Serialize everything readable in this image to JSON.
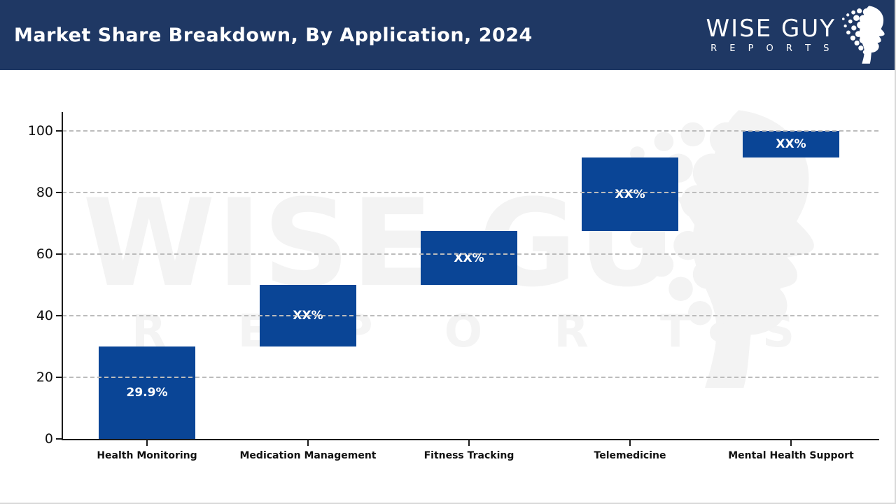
{
  "header": {
    "title": "Market Share Breakdown, By Application, 2024",
    "logo": {
      "name": "WISE GUY",
      "sub": "R E P O R T S"
    }
  },
  "watermark": {
    "line1": "WISE GUY",
    "line2": "R E P O R T S"
  },
  "colors": {
    "header_bg": "#1f3864",
    "bar": "#0a4596",
    "grid": "#bcbcbc",
    "axis": "#1a1a1a",
    "bar_label": "#ffffff",
    "watermark": "#f3f3f3"
  },
  "chart_data": {
    "type": "bar",
    "variant": "waterfall",
    "title": "Market Share Breakdown, By Application, 2024",
    "categories": [
      "Health Monitoring",
      "Medication Management",
      "Fitness Tracking",
      "Telemedicine",
      "Mental Health Support"
    ],
    "segments": [
      {
        "category": "Health Monitoring",
        "start": 0,
        "end": 29.9,
        "value": 29.9,
        "label": "29.9%"
      },
      {
        "category": "Medication Management",
        "start": 29.9,
        "end": 50.0,
        "value": 20.1,
        "label": "XX%"
      },
      {
        "category": "Fitness Tracking",
        "start": 50.0,
        "end": 67.5,
        "value": 17.5,
        "label": "XX%"
      },
      {
        "category": "Telemedicine",
        "start": 67.5,
        "end": 91.3,
        "value": 23.8,
        "label": "XX%"
      },
      {
        "category": "Mental Health Support",
        "start": 91.3,
        "end": 100.0,
        "value": 8.7,
        "label": "XX%"
      }
    ],
    "yticks": [
      0,
      20,
      40,
      60,
      80,
      100
    ],
    "ylim": [
      0,
      106
    ],
    "xlabel": "",
    "ylabel": "",
    "grid": "dashed-horizontal",
    "legend": "none",
    "bar_color": "#0a4596"
  }
}
